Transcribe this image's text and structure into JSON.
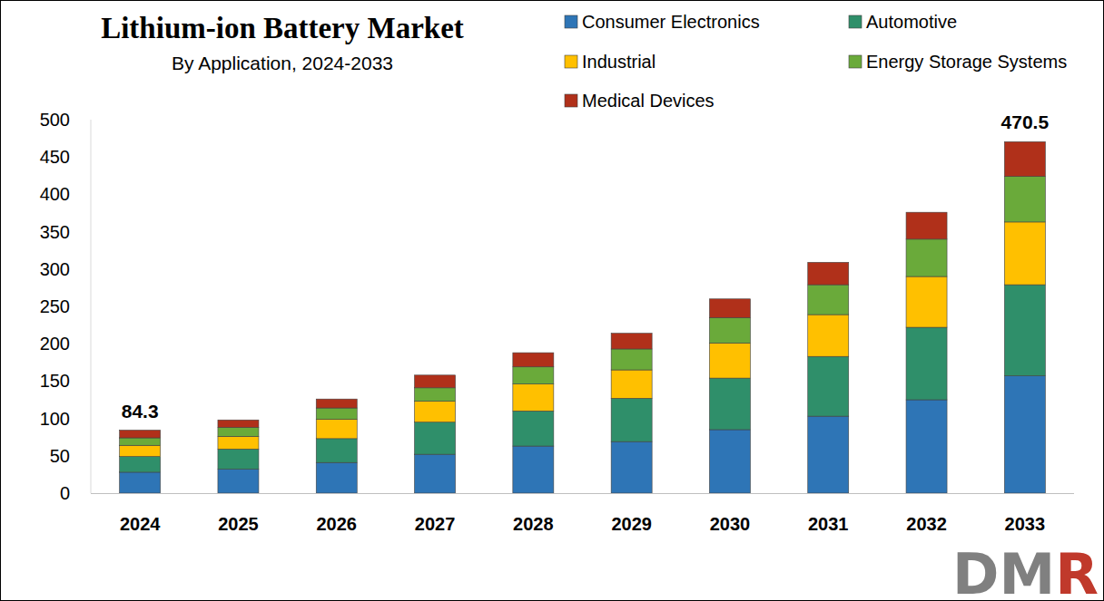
{
  "chart_data": {
    "type": "bar",
    "title": "Lithium-ion Battery Market",
    "subtitle": "By Application, 2024-2033",
    "categories": [
      "2024",
      "2025",
      "2026",
      "2027",
      "2028",
      "2029",
      "2030",
      "2031",
      "2032",
      "2033"
    ],
    "series": [
      {
        "name": "Consumer Electronics",
        "color": "#2e75b6",
        "values": [
          28,
          32,
          41,
          52,
          63,
          69,
          85,
          103,
          125,
          157
        ]
      },
      {
        "name": "Automotive",
        "color": "#2f8f6a",
        "values": [
          21,
          27,
          32,
          43,
          47,
          58,
          69,
          80,
          97,
          122
        ]
      },
      {
        "name": "Industrial",
        "color": "#ffc000",
        "values": [
          15,
          17,
          26,
          28,
          36,
          38,
          47,
          56,
          68,
          84
        ]
      },
      {
        "name": "Energy Storage Systems",
        "color": "#6aaa3a",
        "values": [
          10,
          12,
          15,
          18,
          23,
          28,
          34,
          40,
          50,
          61
        ]
      },
      {
        "name": "Medical Devices",
        "color": "#b0301a",
        "values": [
          10.3,
          10,
          12,
          17,
          19,
          21,
          25,
          30,
          36,
          46.5
        ]
      }
    ],
    "stacked": true,
    "grid": false,
    "legend": "top-right",
    "ylim": [
      0,
      500
    ],
    "yticks": [
      0,
      50,
      100,
      150,
      200,
      250,
      300,
      350,
      400,
      450,
      500
    ],
    "annotations": [
      {
        "category": "2024",
        "text": "84.3"
      },
      {
        "category": "2033",
        "text": "470.5"
      }
    ],
    "logo": "DMR"
  }
}
